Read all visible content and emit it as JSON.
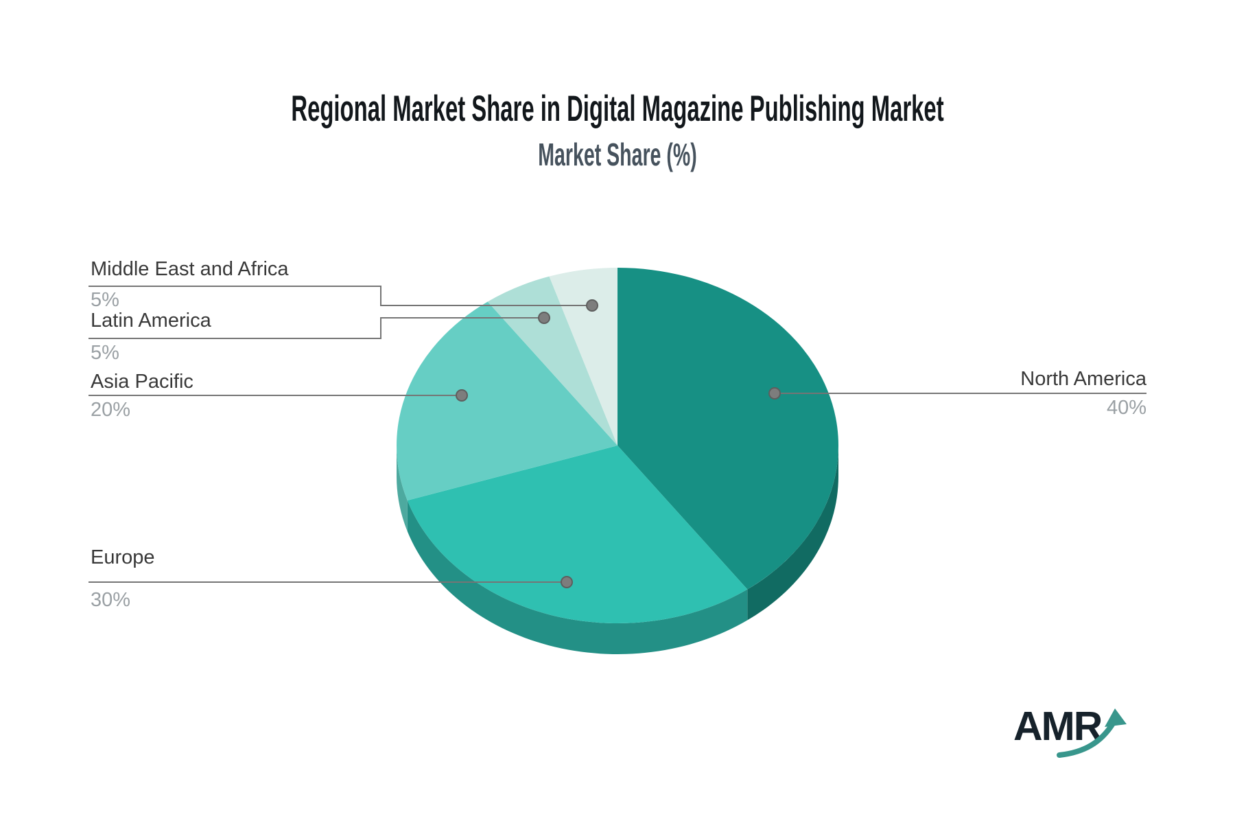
{
  "title": "Regional Market Share in Digital Magazine Publishing Market",
  "subtitle": "Market Share (%)",
  "logo": {
    "text": "AMR"
  },
  "colors": {
    "background": "#ffffff",
    "title": "#12171b",
    "subtitle": "#46525d",
    "label_name": "#383838",
    "label_pct": "#9aa0a4",
    "leader_line": "#757575",
    "leader_dot": "#7d7d7d",
    "logo_text": "#16222b",
    "logo_arrow": "#38968c"
  },
  "chart_data": {
    "type": "pie",
    "title": "Regional Market Share in Digital Magazine Publishing Market",
    "subtitle": "Market Share (%)",
    "unit": "%",
    "style": "3d",
    "start_angle_deg": 0,
    "direction": "clockwise",
    "legend": "none",
    "labels_position": "outside-callouts",
    "slices": [
      {
        "label": "North America",
        "value": 40,
        "pct_text": "40%",
        "color": "#179084",
        "depth_color": "#116b62",
        "callout_side": "right"
      },
      {
        "label": "Europe",
        "value": 30,
        "pct_text": "30%",
        "color": "#2fc0b1",
        "depth_color": "#239086",
        "callout_side": "left"
      },
      {
        "label": "Asia Pacific",
        "value": 20,
        "pct_text": "20%",
        "color": "#66cec4",
        "depth_color": "#4da99f",
        "callout_side": "left"
      },
      {
        "label": "Latin America",
        "value": 5,
        "pct_text": "5%",
        "color": "#aedfd7",
        "depth_color": "#83b7af",
        "callout_side": "left"
      },
      {
        "label": "Middle East and Africa",
        "value": 5,
        "pct_text": "5%",
        "color": "#dcede9",
        "depth_color": "#b5c9c4",
        "callout_side": "left"
      }
    ]
  }
}
